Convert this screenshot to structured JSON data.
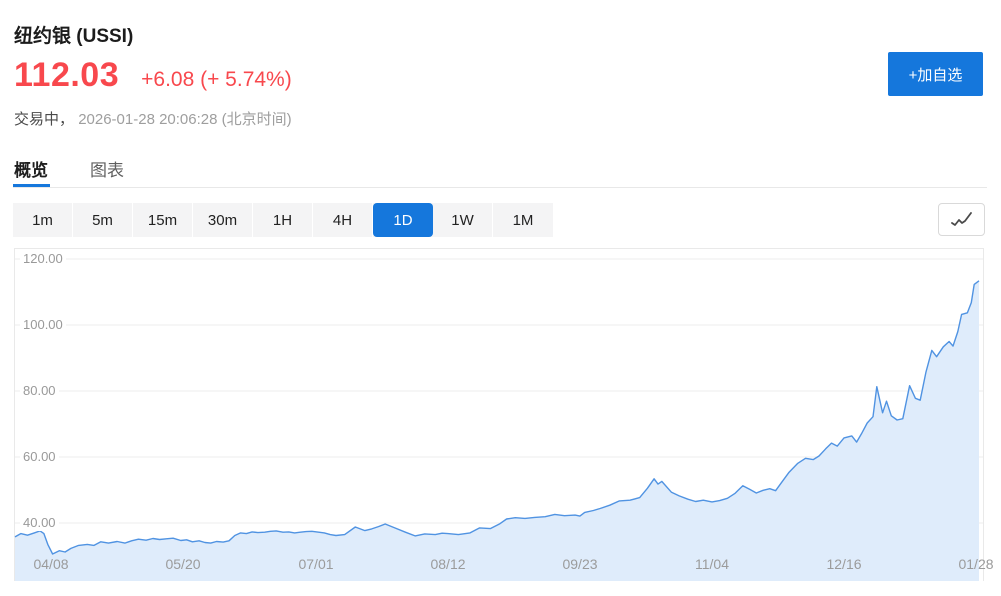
{
  "header": {
    "title": "纽约银 (USSI)",
    "price": "112.03",
    "change": "+6.08 (+ 5.74%)",
    "status_label": "交易中，",
    "status_time": "2026-01-28 20:06:28",
    "status_tz": "(北京时间)",
    "add_watchlist_label": "+加自选"
  },
  "tabs": {
    "overview": "概览",
    "chart": "图表",
    "active": "概览"
  },
  "intervals": {
    "items": [
      "1m",
      "5m",
      "15m",
      "30m",
      "1H",
      "4H",
      "1D",
      "1W",
      "1M"
    ],
    "active": "1D"
  },
  "icons": {
    "chart_type": "trend-line-icon"
  },
  "colors": {
    "accent_blue": "#1577dc",
    "price_red": "#f8484d",
    "line_blue": "#5093e2",
    "fill_blue": "#dfecfb",
    "grid_gray": "#eeeeee"
  },
  "chart_data": {
    "type": "area",
    "title": "",
    "xlabel": "",
    "ylabel": "",
    "grid": true,
    "legend": false,
    "last_price": 112.03,
    "ylim": [
      22.4,
      123
    ],
    "yticks": [
      {
        "label": "120.00",
        "value": 120
      },
      {
        "label": "100.00",
        "value": 100
      },
      {
        "label": "80.00",
        "value": 80
      },
      {
        "label": "60.00",
        "value": 60
      },
      {
        "label": "40.00",
        "value": 40
      }
    ],
    "xticks": [
      {
        "label": "04/08",
        "pos": 0.037
      },
      {
        "label": "05/20",
        "pos": 0.174
      },
      {
        "label": "07/01",
        "pos": 0.312
      },
      {
        "label": "08/12",
        "pos": 0.449
      },
      {
        "label": "09/23",
        "pos": 0.586
      },
      {
        "label": "11/04",
        "pos": 0.723
      },
      {
        "label": "12/16",
        "pos": 0.86
      },
      {
        "label": "01/28",
        "pos": 0.997
      }
    ],
    "points": [
      [
        0.0,
        35.8
      ],
      [
        0.006,
        36.8
      ],
      [
        0.013,
        36.3
      ],
      [
        0.02,
        37.0
      ],
      [
        0.026,
        37.6
      ],
      [
        0.03,
        36.8
      ],
      [
        0.034,
        33.5
      ],
      [
        0.039,
        30.6
      ],
      [
        0.046,
        31.6
      ],
      [
        0.052,
        31.2
      ],
      [
        0.058,
        32.3
      ],
      [
        0.066,
        33.2
      ],
      [
        0.075,
        33.5
      ],
      [
        0.082,
        33.2
      ],
      [
        0.089,
        34.3
      ],
      [
        0.097,
        33.9
      ],
      [
        0.106,
        34.4
      ],
      [
        0.114,
        33.9
      ],
      [
        0.121,
        34.6
      ],
      [
        0.128,
        35.1
      ],
      [
        0.136,
        34.8
      ],
      [
        0.143,
        35.3
      ],
      [
        0.15,
        35.0
      ],
      [
        0.157,
        35.2
      ],
      [
        0.164,
        35.4
      ],
      [
        0.172,
        34.7
      ],
      [
        0.178,
        34.9
      ],
      [
        0.184,
        34.3
      ],
      [
        0.191,
        34.6
      ],
      [
        0.197,
        34.1
      ],
      [
        0.203,
        33.9
      ],
      [
        0.209,
        34.4
      ],
      [
        0.216,
        34.2
      ],
      [
        0.222,
        34.6
      ],
      [
        0.228,
        36.2
      ],
      [
        0.234,
        37.0
      ],
      [
        0.24,
        36.8
      ],
      [
        0.246,
        37.3
      ],
      [
        0.252,
        37.1
      ],
      [
        0.259,
        37.2
      ],
      [
        0.265,
        37.5
      ],
      [
        0.271,
        37.6
      ],
      [
        0.278,
        37.2
      ],
      [
        0.284,
        37.3
      ],
      [
        0.29,
        37.0
      ],
      [
        0.296,
        37.2
      ],
      [
        0.302,
        37.4
      ],
      [
        0.308,
        37.5
      ],
      [
        0.315,
        37.2
      ],
      [
        0.321,
        37.0
      ],
      [
        0.327,
        36.5
      ],
      [
        0.333,
        36.2
      ],
      [
        0.342,
        36.5
      ],
      [
        0.353,
        38.8
      ],
      [
        0.363,
        37.7
      ],
      [
        0.37,
        38.2
      ],
      [
        0.377,
        38.9
      ],
      [
        0.384,
        39.7
      ],
      [
        0.394,
        38.5
      ],
      [
        0.405,
        37.2
      ],
      [
        0.415,
        36.1
      ],
      [
        0.425,
        36.7
      ],
      [
        0.436,
        36.5
      ],
      [
        0.443,
        36.9
      ],
      [
        0.449,
        36.8
      ],
      [
        0.46,
        36.5
      ],
      [
        0.472,
        37.0
      ],
      [
        0.482,
        38.5
      ],
      [
        0.493,
        38.3
      ],
      [
        0.503,
        39.8
      ],
      [
        0.51,
        41.2
      ],
      [
        0.519,
        41.6
      ],
      [
        0.529,
        41.4
      ],
      [
        0.539,
        41.7
      ],
      [
        0.55,
        41.9
      ],
      [
        0.56,
        42.6
      ],
      [
        0.57,
        42.2
      ],
      [
        0.581,
        42.4
      ],
      [
        0.586,
        42.1
      ],
      [
        0.591,
        43.2
      ],
      [
        0.6,
        43.8
      ],
      [
        0.607,
        44.4
      ],
      [
        0.617,
        45.4
      ],
      [
        0.627,
        46.7
      ],
      [
        0.638,
        46.9
      ],
      [
        0.648,
        47.7
      ],
      [
        0.656,
        50.5
      ],
      [
        0.663,
        53.4
      ],
      [
        0.667,
        51.8
      ],
      [
        0.671,
        52.6
      ],
      [
        0.681,
        49.3
      ],
      [
        0.689,
        48.2
      ],
      [
        0.698,
        47.2
      ],
      [
        0.706,
        46.5
      ],
      [
        0.714,
        46.9
      ],
      [
        0.723,
        46.4
      ],
      [
        0.731,
        46.8
      ],
      [
        0.739,
        47.5
      ],
      [
        0.747,
        49.0
      ],
      [
        0.755,
        51.3
      ],
      [
        0.762,
        50.2
      ],
      [
        0.769,
        49.1
      ],
      [
        0.776,
        49.9
      ],
      [
        0.783,
        50.4
      ],
      [
        0.789,
        49.8
      ],
      [
        0.795,
        52.2
      ],
      [
        0.803,
        55.4
      ],
      [
        0.812,
        58.1
      ],
      [
        0.82,
        59.6
      ],
      [
        0.828,
        59.2
      ],
      [
        0.834,
        60.3
      ],
      [
        0.841,
        62.5
      ],
      [
        0.847,
        64.2
      ],
      [
        0.853,
        63.3
      ],
      [
        0.86,
        65.8
      ],
      [
        0.868,
        66.4
      ],
      [
        0.873,
        64.5
      ],
      [
        0.878,
        67.0
      ],
      [
        0.884,
        70.3
      ],
      [
        0.89,
        72.2
      ],
      [
        0.894,
        81.3
      ],
      [
        0.9,
        73.4
      ],
      [
        0.904,
        76.9
      ],
      [
        0.909,
        72.5
      ],
      [
        0.915,
        71.2
      ],
      [
        0.921,
        71.6
      ],
      [
        0.928,
        81.6
      ],
      [
        0.934,
        77.8
      ],
      [
        0.939,
        77.2
      ],
      [
        0.945,
        85.8
      ],
      [
        0.951,
        92.3
      ],
      [
        0.956,
        90.4
      ],
      [
        0.963,
        93.4
      ],
      [
        0.969,
        95.0
      ],
      [
        0.973,
        93.6
      ],
      [
        0.978,
        98.0
      ],
      [
        0.982,
        103.2
      ],
      [
        0.988,
        103.7
      ],
      [
        0.992,
        106.8
      ],
      [
        0.995,
        112.3
      ],
      [
        1.0,
        113.4
      ]
    ]
  }
}
